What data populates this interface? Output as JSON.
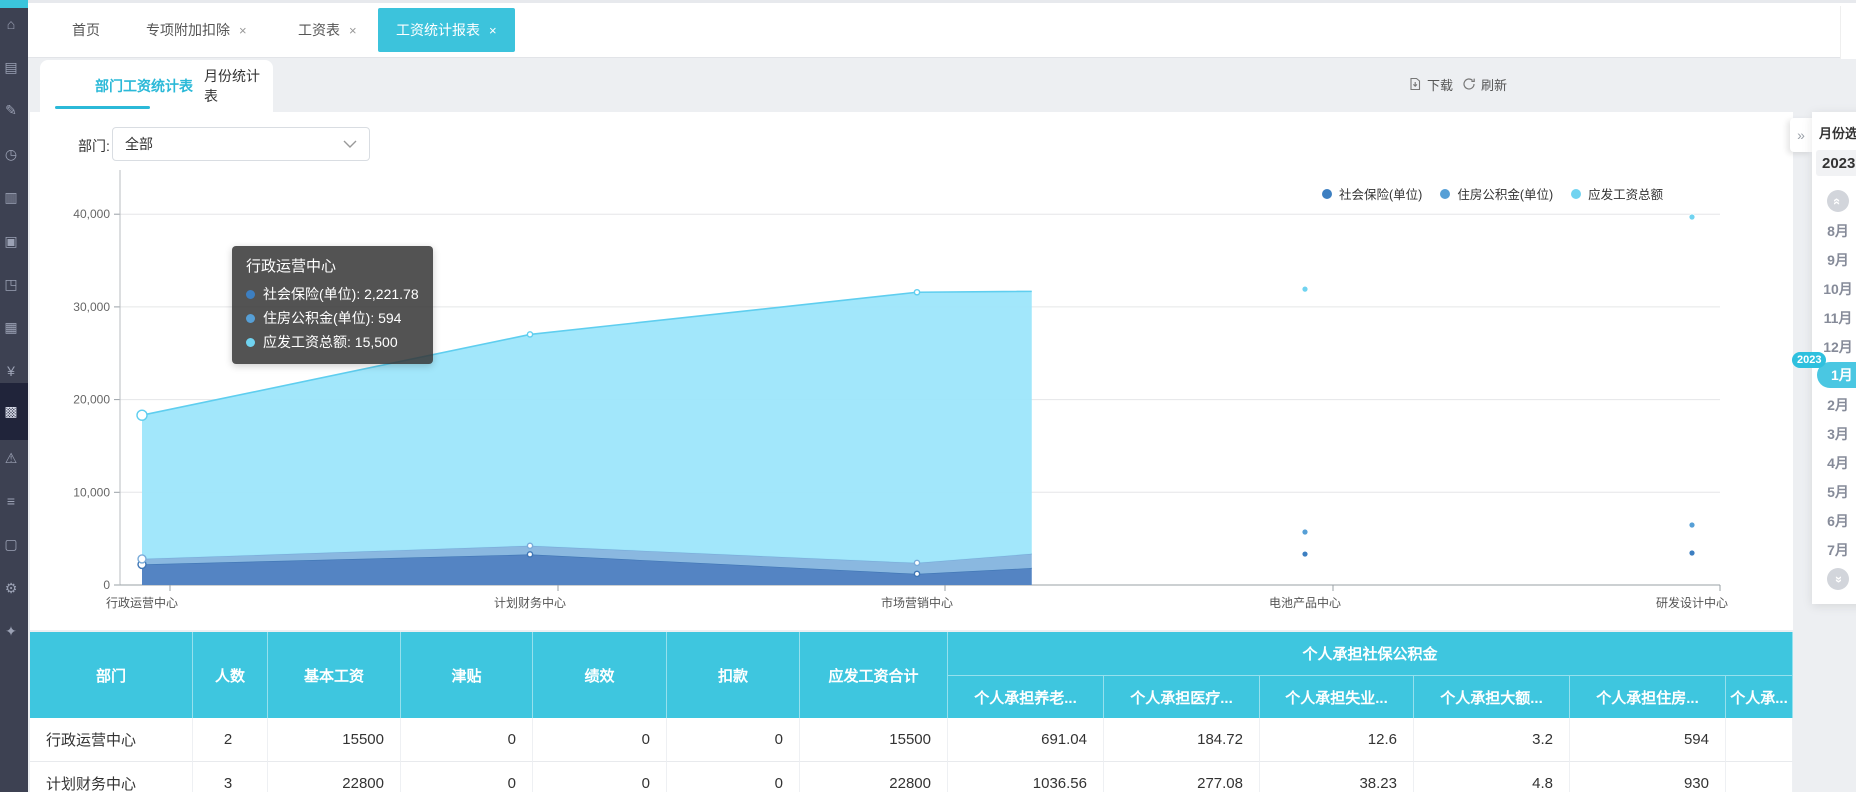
{
  "sidebar": {
    "icons": [
      "⌂",
      "▤",
      "✎",
      "◷",
      "▥",
      "▣",
      "◳",
      "▦",
      "¥",
      "▩",
      "⚠",
      "≡",
      "▢",
      "⚙",
      "✦"
    ],
    "active_index": 9
  },
  "tab_bar": {
    "tabs": [
      {
        "label": "首页",
        "closable": false,
        "active": false
      },
      {
        "label": "专项附加扣除",
        "closable": true,
        "active": false
      },
      {
        "label": "工资表",
        "closable": true,
        "active": false
      },
      {
        "label": "工资统计报表",
        "closable": true,
        "active": true
      }
    ],
    "close_all": "×"
  },
  "sub_tabs": [
    {
      "label": "部门工资统计表",
      "active": true
    },
    {
      "label": "月份统计表",
      "active": false
    }
  ],
  "toolbar": {
    "download": "下载",
    "refresh": "刷新"
  },
  "filter": {
    "label": "部门:",
    "value": "全部"
  },
  "chart_data": {
    "type": "area",
    "stacked": true,
    "categories": [
      "行政运营中心",
      "计划财务中心",
      "市场营销中心",
      "电池产品中心",
      "研发设计中心"
    ],
    "series": [
      {
        "name": "社会保险(单位)",
        "dot": "#3d7fc1",
        "fill": "#5484c3",
        "line": "#3f76b5",
        "values": [
          2221.78,
          3300,
          1200,
          3340,
          3450
        ]
      },
      {
        "name": "住房公积金(单位)",
        "dot": "#569fd6",
        "fill": "#8ab8e0",
        "line": "#79abd9",
        "values": [
          594,
          930,
          1180,
          2380,
          3020
        ]
      },
      {
        "name": "应发工资总额",
        "dot": "#70d3f0",
        "fill": "#9de6fb",
        "line": "#5fceef",
        "values": [
          15500,
          22800,
          29200,
          26200,
          33230
        ]
      }
    ],
    "ylim": [
      0,
      40000
    ],
    "yticks": [
      "0",
      "10,000",
      "20,000",
      "30,000",
      "40,000"
    ],
    "grid": true,
    "legend_position": "top-right",
    "draw_progress": 0.58,
    "title": "",
    "xlabel": "",
    "ylabel": ""
  },
  "tooltip": {
    "title": "行政运营中心",
    "rows": [
      {
        "label": "社会保险(单位)",
        "value": "2,221.78",
        "color": "#3d7fc1"
      },
      {
        "label": "住房公积金(单位)",
        "value": "594",
        "color": "#569fd6"
      },
      {
        "label": "应发工资总额",
        "value": "15,500",
        "color": "#70d3f0"
      }
    ]
  },
  "month_panel": {
    "collapse": "»",
    "title": "月份选择",
    "period": "2023.0",
    "year_badge": "2023",
    "months": [
      "8月",
      "9月",
      "10月",
      "11月",
      "12月",
      "1月",
      "2月",
      "3月",
      "4月",
      "5月",
      "6月",
      "7月"
    ],
    "active_month": "1月"
  },
  "table": {
    "columns": [
      "部门",
      "人数",
      "基本工资",
      "津贴",
      "绩效",
      "扣款",
      "应发工资合计"
    ],
    "group_header": "个人承担社保公积金",
    "sub_columns": [
      "个人承担养老...",
      "个人承担医疗...",
      "个人承担失业...",
      "个人承担大额...",
      "个人承担住房...",
      "个人承..."
    ],
    "rows": [
      [
        "行政运营中心",
        "2",
        "15500",
        "0",
        "0",
        "0",
        "15500",
        "691.04",
        "184.72",
        "12.6",
        "3.2",
        "594",
        ""
      ],
      [
        "计划财务中心",
        "3",
        "22800",
        "0",
        "0",
        "0",
        "22800",
        "1036.56",
        "277.08",
        "38.23",
        "4.8",
        "930",
        ""
      ]
    ]
  }
}
